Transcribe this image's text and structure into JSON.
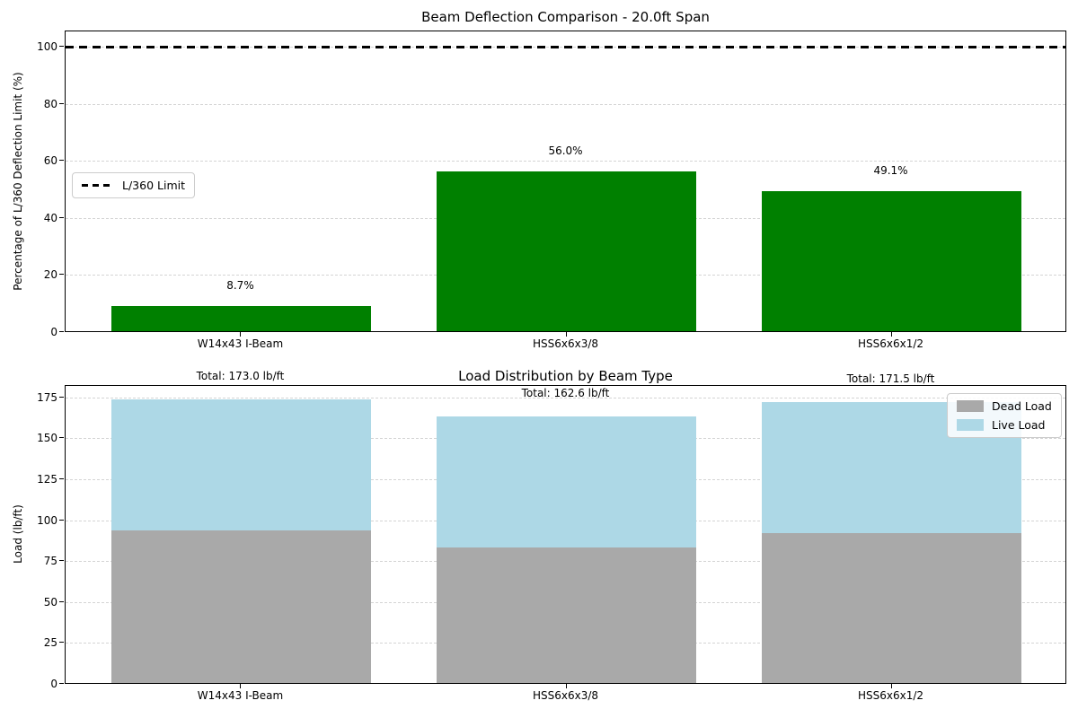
{
  "chart_data": [
    {
      "type": "bar",
      "title": "Beam Deflection Comparison - 20.0ft Span",
      "ylabel": "Percentage of L/360 Deflection Limit (%)",
      "xlabel": "",
      "categories": [
        "W14x43 I-Beam",
        "HSS6x6x3/8",
        "HSS6x6x1/2"
      ],
      "values": [
        8.7,
        56.0,
        49.1
      ],
      "bar_labels": [
        "8.7%",
        "56.0%",
        "49.1%"
      ],
      "bar_color": "#008000",
      "yticks": [
        0,
        20,
        40,
        60,
        80,
        100
      ],
      "ylim": [
        0,
        105.8
      ],
      "grid": true,
      "reference_line": {
        "value": 100,
        "label": "L/360 Limit",
        "color": "#000000",
        "style": "dashed"
      },
      "legend_position": "center-left"
    },
    {
      "type": "bar",
      "subtype": "stacked",
      "title": "Load Distribution by Beam Type",
      "ylabel": "Load (lb/ft)",
      "xlabel": "",
      "categories": [
        "W14x43 I-Beam",
        "HSS6x6x3/8",
        "HSS6x6x1/2"
      ],
      "series": [
        {
          "name": "Dead Load",
          "color": "#a9a9a9",
          "values": [
            93.0,
            82.6,
            91.5
          ]
        },
        {
          "name": "Live Load",
          "color": "#add8e6",
          "values": [
            80.0,
            80.0,
            80.0
          ]
        }
      ],
      "totals": [
        173.0,
        162.6,
        171.5
      ],
      "total_labels": [
        "Total: 173.0 lb/ft",
        "Total: 162.6 lb/ft",
        "Total: 171.5 lb/ft"
      ],
      "yticks": [
        0,
        25,
        50,
        75,
        100,
        125,
        150,
        175
      ],
      "ylim": [
        0,
        182.5
      ],
      "grid": true,
      "legend_position": "upper-right"
    }
  ]
}
